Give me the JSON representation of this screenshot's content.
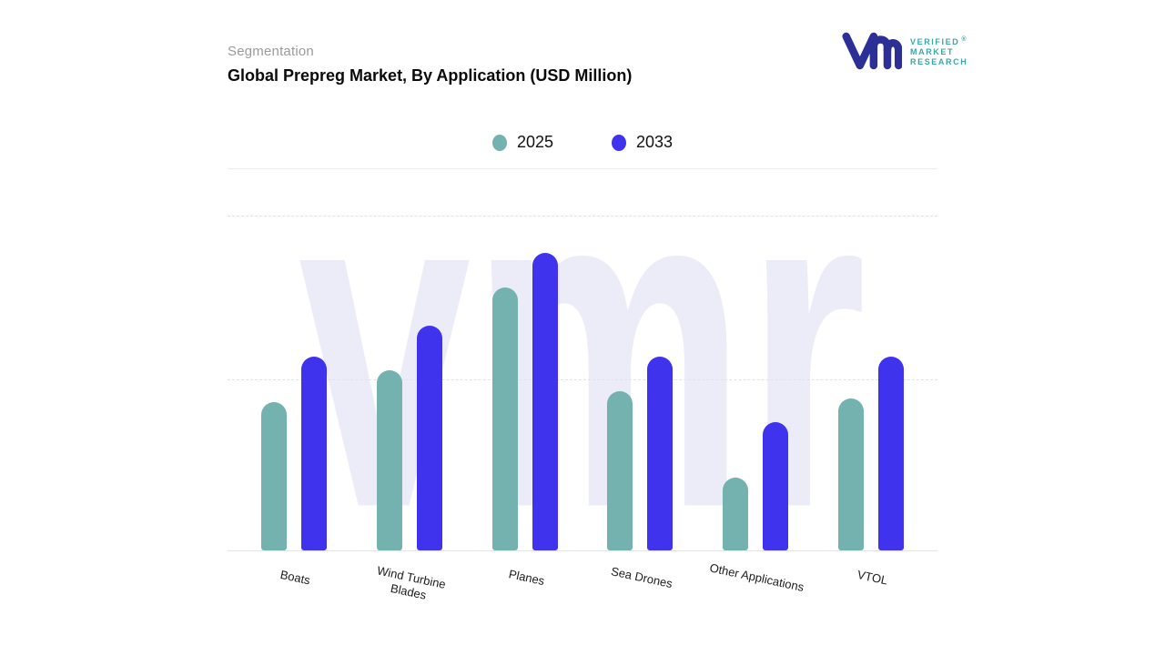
{
  "header": {
    "eyebrow": "Segmentation",
    "title": "Global Prepreg Market, By Application (USD Million)"
  },
  "logo": {
    "line1": "VERIFIED",
    "line2": "MARKET",
    "line3": "RESEARCH",
    "registered": "®"
  },
  "watermark": "vmr",
  "colors": {
    "series_2025": "#74b2b0",
    "series_2033": "#3f33ee",
    "watermark": "#ebecf8",
    "grid": "#e3e3e6",
    "eyebrow_text": "#9a9a9a",
    "title_text": "#0b0b0b",
    "logo_text": "#39a7a4",
    "logo_mark_blue": "#2b2f96"
  },
  "chart_data": {
    "type": "bar",
    "title": "Global Prepreg Market, By Application (USD Million)",
    "xlabel": "",
    "ylabel": "",
    "categories": [
      "Boats",
      "Wind Turbine Blades",
      "Planes",
      "Sea Drones",
      "Other Applications",
      "VTOL"
    ],
    "tick_label_lines": [
      [
        "Boats"
      ],
      [
        "Wind Turbine",
        "Blades"
      ],
      [
        "Planes"
      ],
      [
        "Sea Drones"
      ],
      [
        "Other Applications"
      ],
      [
        "VTOL"
      ]
    ],
    "series": [
      {
        "name": "2025",
        "color": "#74b2b0",
        "values": [
          43,
          52,
          76,
          46,
          21,
          44
        ]
      },
      {
        "name": "2033",
        "color": "#3f33ee",
        "values": [
          56,
          65,
          86,
          56,
          37,
          56
        ]
      }
    ],
    "ylim": [
      0,
      100
    ],
    "value_axis_tick_labels": "none (values estimated relative to plot height, no numeric axis shown)",
    "grid": "horizontal dashed",
    "legend_position": "top-center",
    "bar_corner": "rounded-top"
  }
}
